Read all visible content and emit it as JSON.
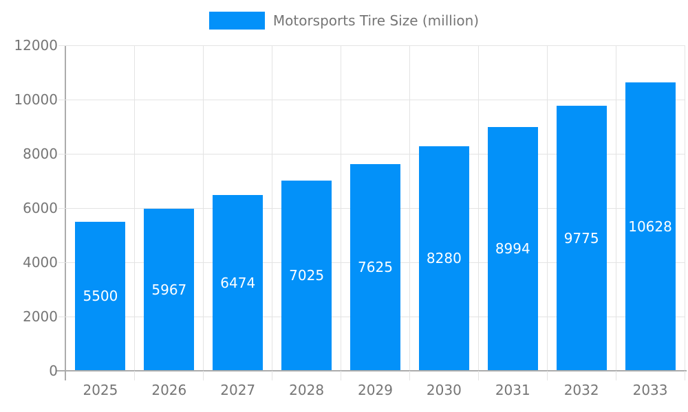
{
  "chart_data": {
    "type": "bar",
    "title": "Motorsports Tire Size (million)",
    "legend": {
      "label": "Motorsports Tire Size (million)",
      "position": "top-center"
    },
    "categories": [
      "2025",
      "2026",
      "2027",
      "2028",
      "2029",
      "2030",
      "2031",
      "2032",
      "2033"
    ],
    "values": [
      5500,
      5967,
      6474,
      7025,
      7625,
      8280,
      8994,
      9775,
      10628
    ],
    "xlabel": "",
    "ylabel": "",
    "ylim": [
      0,
      12000
    ],
    "yticks": [
      0,
      2000,
      4000,
      6000,
      8000,
      10000,
      12000
    ],
    "grid": true,
    "value_labels": "inside-center-white",
    "colors": {
      "bar": "#0391f9",
      "grid": "#e3e3e3",
      "axis_line": "#ababab",
      "axis_text": "#757575",
      "value_label_text": "#ffffff"
    }
  }
}
